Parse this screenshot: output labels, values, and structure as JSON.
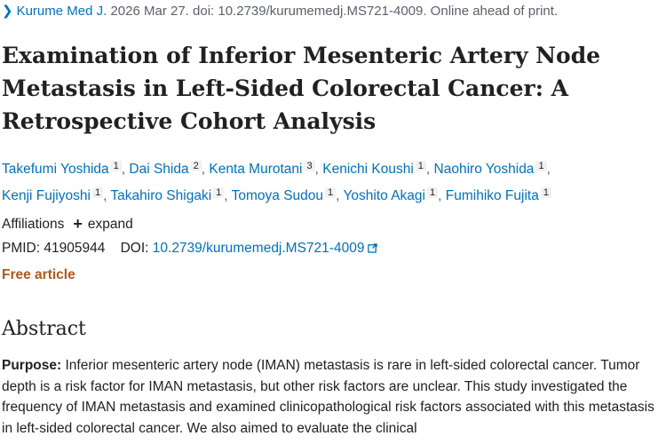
{
  "citation": {
    "chevron_icon": "chevron-right-icon",
    "journal": "Kurume Med J.",
    "rest": " 2026 Mar 27. doi: 10.2739/kurumemedj.MS721-4009. Online ahead of print."
  },
  "title": "Examination of Inferior Mesenteric Artery Node Metastasis in Left-Sided Colorectal Cancer: A Retrospective Cohort Analysis",
  "authors": [
    {
      "name": "Takefumi Yoshida",
      "aff": "1"
    },
    {
      "name": "Dai Shida",
      "aff": "2"
    },
    {
      "name": "Kenta Murotani",
      "aff": "3"
    },
    {
      "name": "Kenichi Koushi",
      "aff": "1"
    },
    {
      "name": "Naohiro Yoshida",
      "aff": "1"
    },
    {
      "name": "Kenji Fujiyoshi",
      "aff": "1"
    },
    {
      "name": "Takahiro Shigaki",
      "aff": "1"
    },
    {
      "name": "Tomoya Sudou",
      "aff": "1"
    },
    {
      "name": "Yoshito Akagi",
      "aff": "1"
    },
    {
      "name": "Fumihiko Fujita",
      "aff": "1"
    }
  ],
  "affiliations": {
    "label": "Affiliations",
    "expand": "expand",
    "plus_icon": "plus-icon"
  },
  "ids": {
    "pmid_label": "PMID:",
    "pmid": "41905944",
    "doi_label": "DOI:",
    "doi": "10.2739/kurumemedj.MS721-4009",
    "external_icon": "external-link-icon"
  },
  "free_article": "Free article",
  "abstract": {
    "heading": "Abstract",
    "purpose_label": "Purpose:",
    "purpose_text": " Inferior mesenteric artery node (IMAN) metastasis is rare in left-sided colorectal cancer. Tumor depth is a risk factor for IMAN metastasis, but other risk factors are unclear. This study investigated the frequency of IMAN metastasis and examined clinicopathological risk factors associated with this metastasis in left-sided colorectal cancer. We also aimed to evaluate the clinical"
  },
  "colors": {
    "link": "#0071bc",
    "free": "#b1571c",
    "text": "#212121",
    "muted": "#5b616b"
  }
}
